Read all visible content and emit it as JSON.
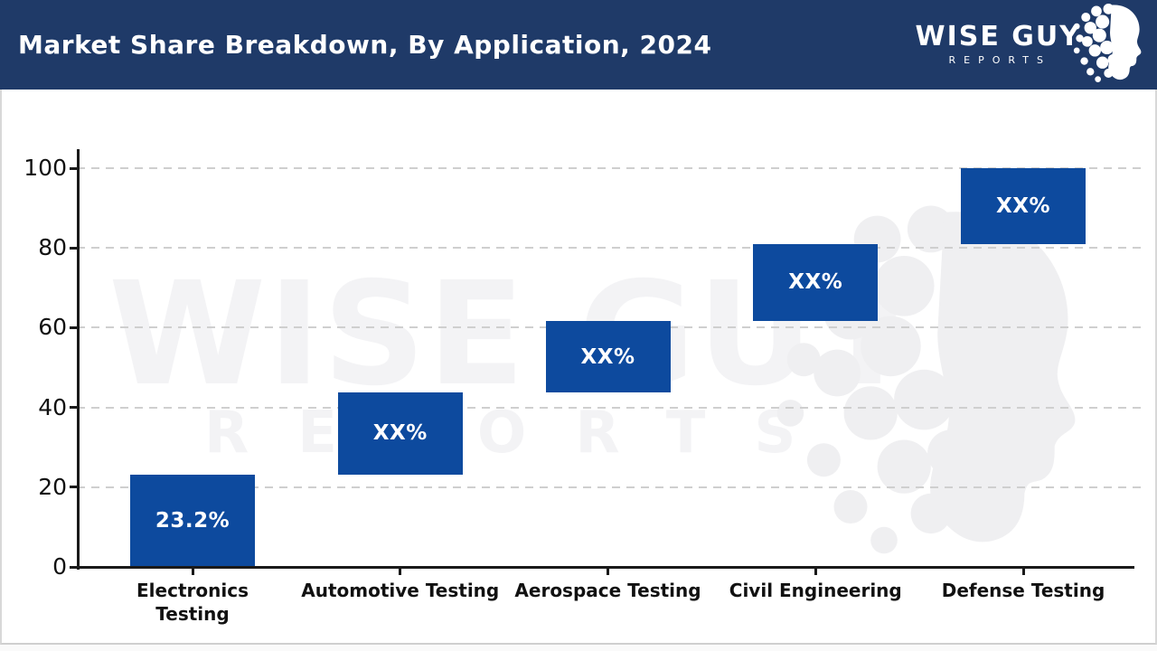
{
  "header": {
    "title": "Market Share Breakdown, By Application, 2024",
    "bg_color": "#1f3a68",
    "logo": {
      "line1": "WISE GUY",
      "line2": "REPORTS"
    }
  },
  "watermark": {
    "line1": "WISE GUY",
    "line2": "REPORTS"
  },
  "chart_data": {
    "type": "waterfall",
    "title": "Market Share Breakdown, By Application, 2024",
    "categories": [
      "Electronics Testing",
      "Automotive Testing",
      "Aerospace Testing",
      "Civil Engineering",
      "Defense Testing"
    ],
    "categories_multiline": [
      [
        "Electronics",
        "Testing"
      ],
      [
        "Automotive Testing"
      ],
      [
        "Aerospace Testing"
      ],
      [
        "Civil Engineering"
      ],
      [
        "Defense Testing"
      ]
    ],
    "segments": [
      {
        "category": "Electronics Testing",
        "start": 0,
        "end": 23.2,
        "label": "23.2%"
      },
      {
        "category": "Automotive Testing",
        "start": 23.2,
        "end": 43.7,
        "label": "XX%"
      },
      {
        "category": "Aerospace Testing",
        "start": 43.7,
        "end": 61.7,
        "label": "XX%"
      },
      {
        "category": "Civil Engineering",
        "start": 61.7,
        "end": 81.0,
        "label": "XX%"
      },
      {
        "category": "Defense Testing",
        "start": 81.0,
        "end": 100.0,
        "label": "XX%"
      }
    ],
    "yticks": [
      0,
      20,
      40,
      60,
      80,
      100
    ],
    "ylim": [
      0,
      105
    ],
    "xlabel": "",
    "ylabel": "",
    "grid": "horizontal-dashed",
    "legend": "none",
    "bar_color": "#0d4a9e",
    "bar_label_color": "#ffffff",
    "axis_color": "#1a1a1a",
    "tick_label_color": "#111111",
    "gridline_color": "#cfcfcf",
    "watermark_color": "#f3f3f5"
  }
}
